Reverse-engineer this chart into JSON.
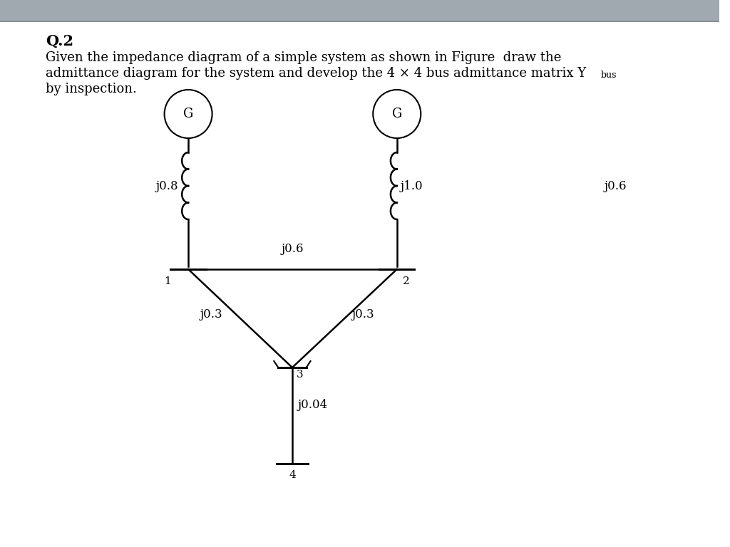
{
  "title": "Q.2",
  "line1": "Given the impedance diagram of a simple system as shown in Figure  draw the",
  "line2": "admittance diagram for the system and develop the 4 × 4 bus admittance matrix Y",
  "line2_sub": "bus",
  "line3": "by inspection.",
  "bg_top_color": "#a0a8b0",
  "bg_main_color": "#ffffff",
  "text_color": "#000000",
  "line_color": "#000000",
  "label_j08": "j0.8",
  "label_j10": "j1.0",
  "label_j06_line": "j0.6",
  "label_j03_left": "j0.3",
  "label_j03_right": "j0.3",
  "label_j004": "j0.04",
  "label_j06_right": "j0.6",
  "bus1_label": "1",
  "bus2_label": "2",
  "bus3_label": "3",
  "bus4_label": "4",
  "gen_label": "G",
  "font_size_text": 13,
  "font_size_label": 12,
  "font_size_node": 11
}
